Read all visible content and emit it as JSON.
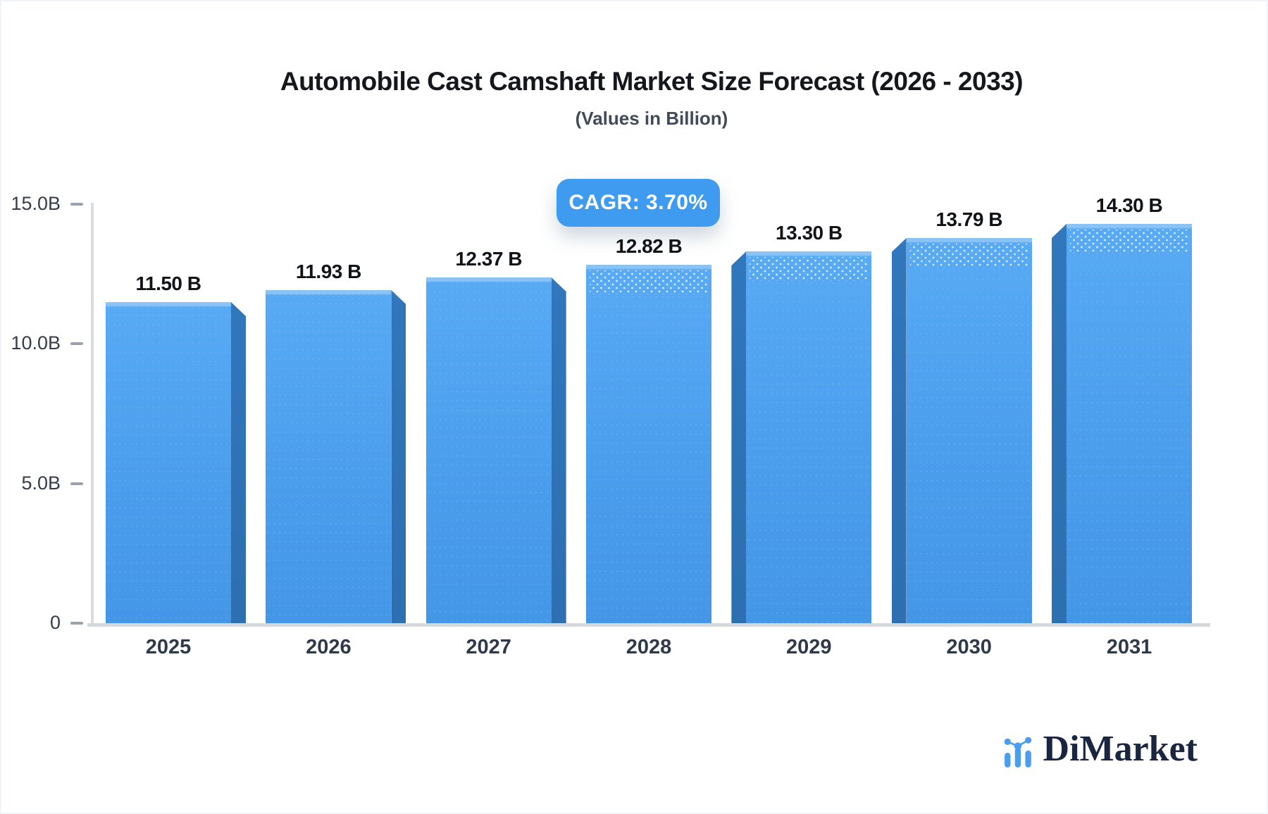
{
  "header": {
    "title": "Automobile Cast Camshaft Market Size Forecast (2026 - 2033)",
    "subtitle": "(Values in Billion)"
  },
  "badge": {
    "label": "CAGR: 3.70%",
    "bg_color": "#3F9BEF",
    "text_color": "#FFFFFF"
  },
  "chart_data": {
    "type": "bar",
    "title": "Automobile Cast Camshaft Market Size Forecast (2026 - 2033)",
    "subtitle": "(Values in Billion)",
    "categories": [
      "2025",
      "2026",
      "2027",
      "2028",
      "2029",
      "2030",
      "2031"
    ],
    "values": [
      11.5,
      11.93,
      12.37,
      12.82,
      13.3,
      13.79,
      14.3
    ],
    "value_labels": [
      "11.50 B",
      "11.93 B",
      "12.37 B",
      "12.82 B",
      "13.30 B",
      "13.79 B",
      "14.30 B"
    ],
    "annotation": "CAGR: 3.70%",
    "xlabel": "",
    "ylabel": "",
    "ylim": [
      0,
      15
    ],
    "yticks": [
      {
        "value": 0,
        "label": "0"
      },
      {
        "value": 5,
        "label": "5.0B"
      },
      {
        "value": 10,
        "label": "10.0B"
      },
      {
        "value": 15,
        "label": "15.0B"
      }
    ],
    "grid": false,
    "legend": "none",
    "bar_color_top": "#58AAF4",
    "bar_color_bottom": "#4496E7",
    "bar_side_color": "#2E74B8"
  },
  "logo": {
    "text": "DiMarket",
    "icon": "mini-bar-chart-icon",
    "text_color": "#1A2540",
    "icon_color": "#4B9DF1"
  }
}
